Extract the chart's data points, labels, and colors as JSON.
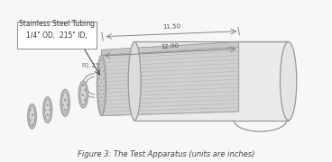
{
  "bg_color": "#f7f7f5",
  "title": "Figure 3: The Test Apparatus (units are inches)",
  "title_fontsize": 6.0,
  "annotation_text": "Stainless Steel Tubing\n1/4\" OD, .215\" ID,",
  "annotation_fontsize": 5.5,
  "label_11_50": "11.50",
  "label_12_00": "12.00",
  "label_R1_25": "R1.25",
  "dim_fontsize": 5.0,
  "line_color": "#aaaaaa",
  "tube_fill": "#d8d8d8",
  "tube_edge": "#999999",
  "outer_tube_fill": "#ebebeb",
  "outer_tube_edge": "#aaaaaa",
  "bundle_fill": "#d0d0d0",
  "disc_fill": "#cccccc",
  "white": "#ffffff"
}
